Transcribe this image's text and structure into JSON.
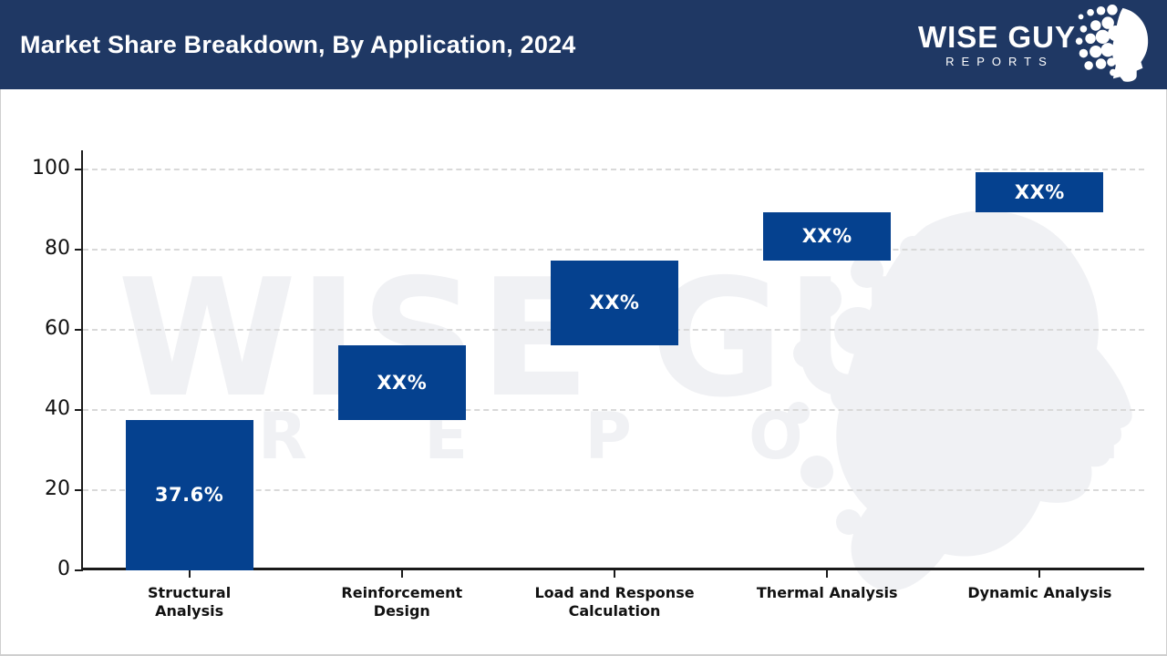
{
  "header": {
    "title": "Market Share Breakdown, By Application, 2024",
    "logo": {
      "line1": "WISE GUY",
      "line2": "REPORTS"
    }
  },
  "watermark": {
    "line1": "WISE GUY",
    "line2": "REPORTS"
  },
  "colors": {
    "header_bg": "#1f3864",
    "bar_color": "#05418f",
    "axis_color": "#1a1a1a",
    "grid_color": "#d9d9d9",
    "watermark_color": "#f0f1f4",
    "text_color": "#111111"
  },
  "chart_data": {
    "type": "bar",
    "subtype": "floating-waterfall",
    "title": "Market Share Breakdown, By Application, 2024",
    "xlabel": "",
    "ylabel": "",
    "ylim": [
      0,
      104.8
    ],
    "yticks": [
      0,
      20,
      40,
      60,
      80,
      100
    ],
    "grid": "horizontal-dashed",
    "legend": "none",
    "categories": [
      "Structural\nAnalysis",
      "Reinforcement\nDesign",
      "Load and Response\nCalculation",
      "Thermal Analysis",
      "Dynamic Analysis"
    ],
    "segments": [
      {
        "category": "Structural Analysis",
        "start": 0,
        "end": 37.6,
        "value": 37.6,
        "label": "37.6%"
      },
      {
        "category": "Reinforcement Design",
        "start": 37.6,
        "end": 56.2,
        "value": 18.6,
        "label": "XX%"
      },
      {
        "category": "Load and Response Calculation",
        "start": 56.2,
        "end": 77.4,
        "value": 21.2,
        "label": "XX%"
      },
      {
        "category": "Thermal Analysis",
        "start": 77.4,
        "end": 89.4,
        "value": 12.0,
        "label": "XX%"
      },
      {
        "category": "Dynamic Analysis",
        "start": 89.4,
        "end": 99.3,
        "value": 9.9,
        "label": "XX%"
      }
    ]
  }
}
